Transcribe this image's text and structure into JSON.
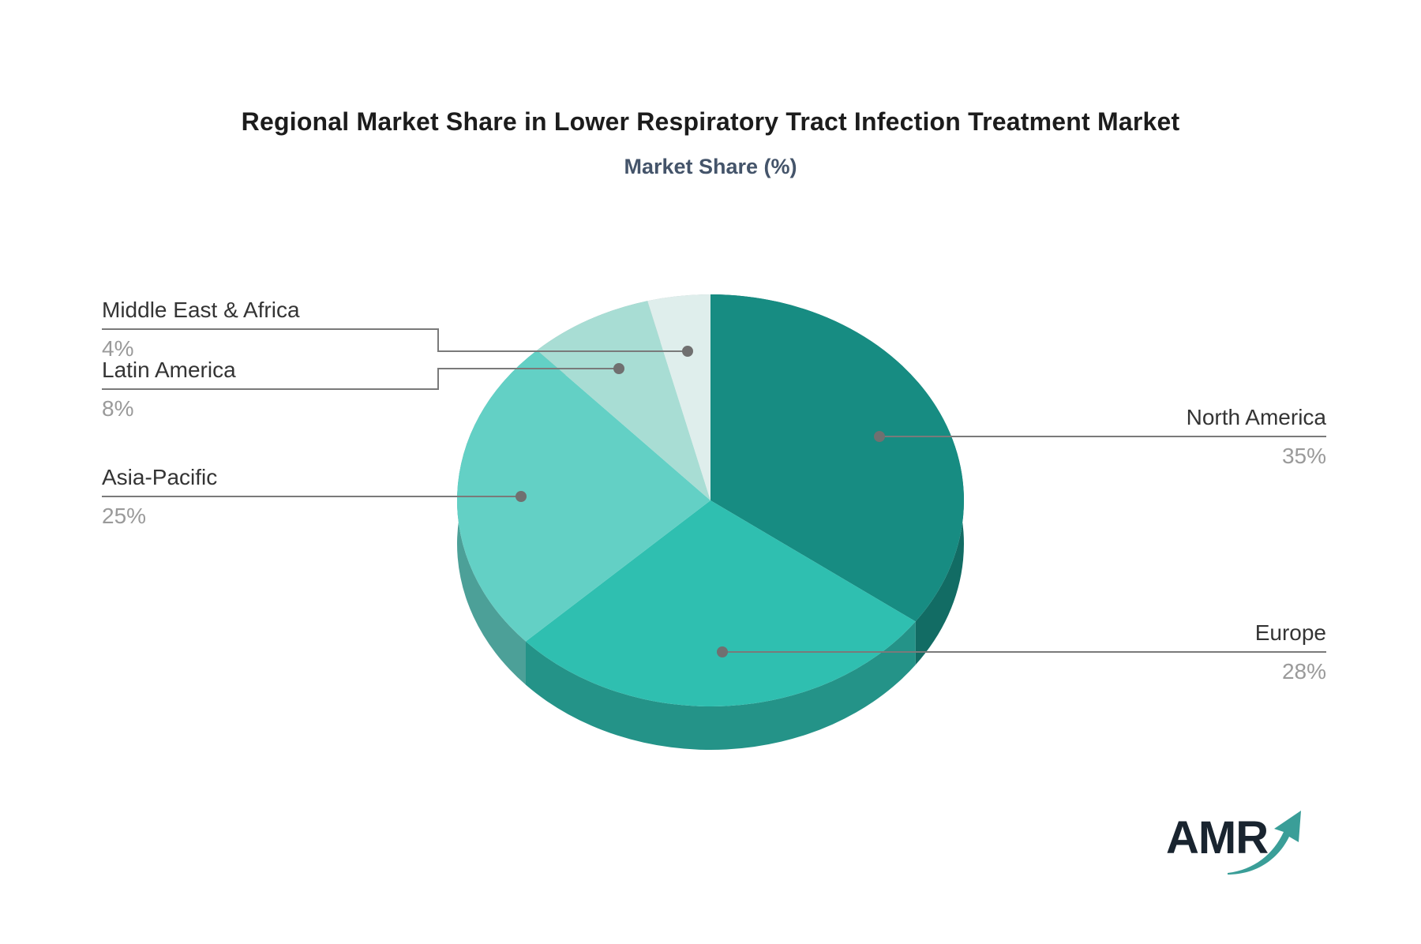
{
  "header": {
    "title": "Regional Market Share in Lower Respiratory Tract Infection Treatment Market",
    "subtitle": "Market Share (%)"
  },
  "chart_data": {
    "type": "pie",
    "title": "Regional Market Share in Lower Respiratory Tract Infection Treatment Market",
    "subtitle": "Market Share (%)",
    "unit": "%",
    "direction": "clockwise",
    "start_angle_deg": 0,
    "effect": "3d-depth",
    "legend_position": "callout-labels",
    "slices": [
      {
        "label": "North America",
        "value": 35,
        "pct_label": "35%",
        "color": "#178c82",
        "label_side": "right"
      },
      {
        "label": "Europe",
        "value": 28,
        "pct_label": "28%",
        "color": "#2fbfb0",
        "label_side": "right"
      },
      {
        "label": "Asia-Pacific",
        "value": 25,
        "pct_label": "25%",
        "color": "#63d0c5",
        "label_side": "left"
      },
      {
        "label": "Latin America",
        "value": 8,
        "pct_label": "8%",
        "color": "#a8ddd4",
        "label_side": "left"
      },
      {
        "label": "Middle East & Africa",
        "value": 4,
        "pct_label": "4%",
        "color": "#dfeeec",
        "label_side": "left"
      }
    ],
    "leader_line_color": "#7a7a7a",
    "label_text_color": "#343434",
    "pct_text_color": "#9a9a9a"
  },
  "logo": {
    "text": "AMR",
    "text_color": "#19242f",
    "arrow_color": "#3a9e98"
  }
}
